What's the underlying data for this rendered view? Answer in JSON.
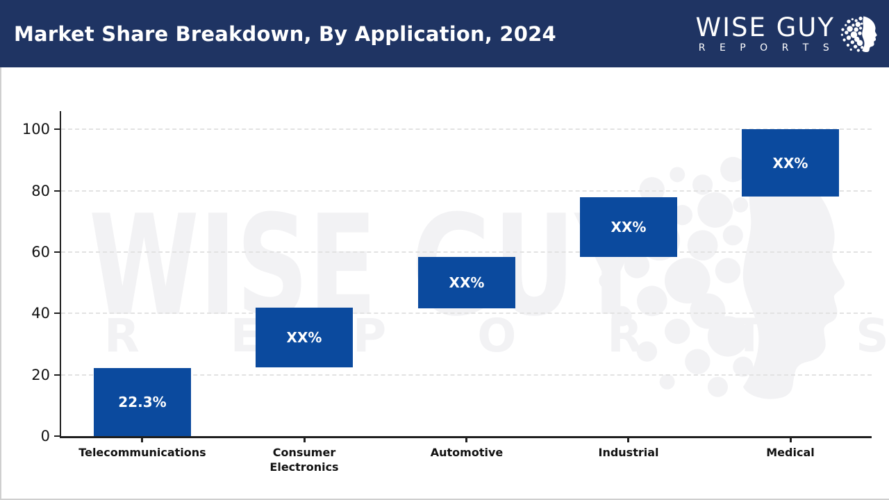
{
  "header": {
    "title": "Market Share Breakdown, By Application, 2024",
    "logo": {
      "line1": "WISE GUY",
      "line2": "R E P O R T S"
    }
  },
  "watermark": {
    "line1": "WISE GUY",
    "line2": "R E P O R T S"
  },
  "colors": {
    "header_bg": "#1f3463",
    "bar": "#0b4a9e",
    "bar_label": "#ffffff",
    "axis": "#1f1f1f",
    "grid": "#e2e2e2",
    "watermark": "#f2f2f4",
    "tick_text": "#111111"
  },
  "chart_data": {
    "type": "bar",
    "subtype": "waterfall",
    "title": "Market Share Breakdown, By Application, 2024",
    "categories": [
      "Telecommunications",
      "Consumer Electronics",
      "Automotive",
      "Industrial",
      "Medical"
    ],
    "segments": [
      {
        "category": "Telecommunications",
        "start": 0,
        "end": 22.3,
        "label": "22.3%"
      },
      {
        "category": "Consumer Electronics",
        "start": 22.3,
        "end": 41.8,
        "label": "XX%"
      },
      {
        "category": "Automotive",
        "start": 41.8,
        "end": 58.5,
        "label": "XX%"
      },
      {
        "category": "Industrial",
        "start": 58.5,
        "end": 78.0,
        "label": "XX%"
      },
      {
        "category": "Medical",
        "start": 78.0,
        "end": 100.0,
        "label": "XX%"
      }
    ],
    "xlabel": "",
    "ylabel": "",
    "yticks": [
      0,
      20,
      40,
      60,
      80,
      100
    ],
    "ylim": [
      0,
      106
    ],
    "grid": "horizontal-dashed",
    "legend": "none"
  }
}
